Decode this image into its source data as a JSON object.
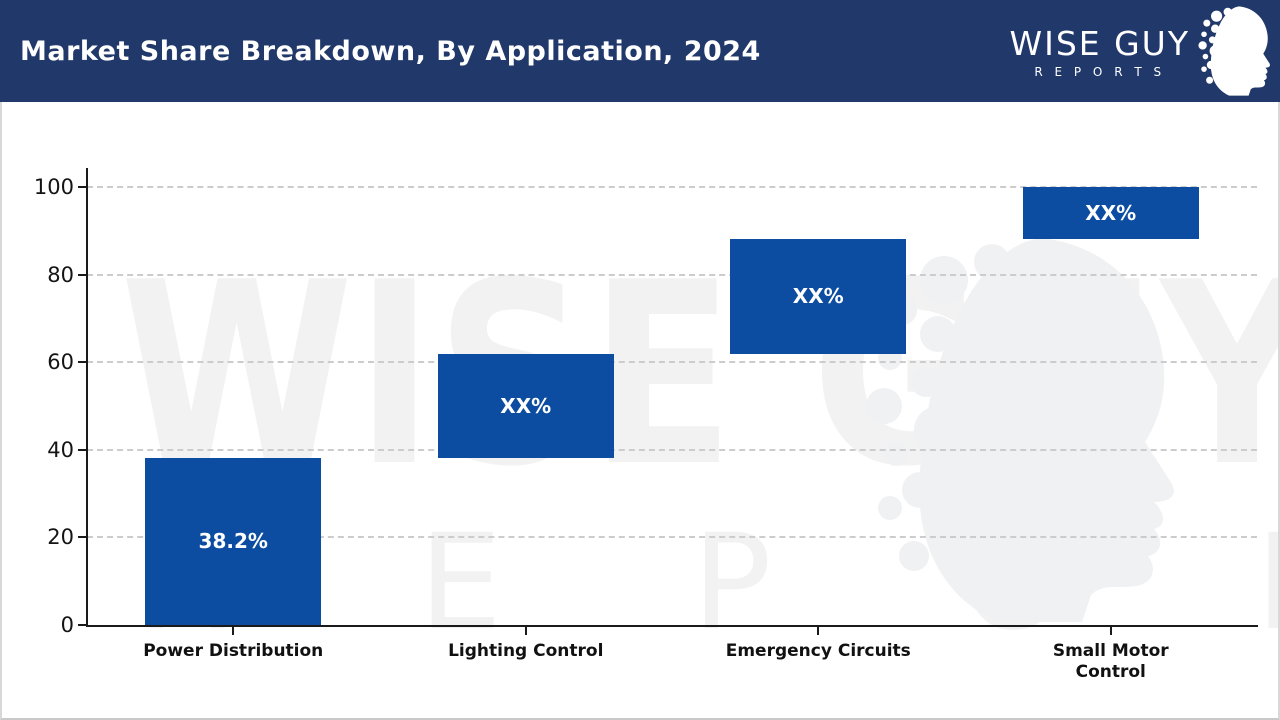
{
  "header": {
    "title": "Market Share Breakdown, By Application, 2024",
    "logo": {
      "line1": "WISE GUY",
      "line2": "R E P O R T S"
    }
  },
  "watermark": {
    "line1": "WISE GUY",
    "line2": "R E P O R T S"
  },
  "chart_data": {
    "type": "bar",
    "subtype": "waterfall",
    "title": "Market Share Breakdown, By Application, 2024",
    "categories": [
      "Power Distribution",
      "Lighting Control",
      "Emergency Circuits",
      "Small Motor\nControl"
    ],
    "segments": [
      {
        "category": "Power Distribution",
        "start": 0,
        "end": 38.2,
        "label": "38.2%"
      },
      {
        "category": "Lighting Control",
        "start": 38.2,
        "end": 61.8,
        "label": "XX%"
      },
      {
        "category": "Emergency Circuits",
        "start": 61.8,
        "end": 88.2,
        "label": "XX%"
      },
      {
        "category": "Small Motor Control",
        "start": 88.2,
        "end": 100.0,
        "label": "XX%"
      }
    ],
    "ylim": [
      0,
      100
    ],
    "yticks": [
      0,
      20,
      40,
      60,
      80,
      100
    ],
    "xlabel": "",
    "ylabel": "",
    "grid": "horizontal-dashed",
    "legend": "none",
    "bar_color": "#0c4da2",
    "bar_label_color": "#ffffff"
  },
  "colors": {
    "header_bg": "#21386b",
    "bar": "#0c4da2",
    "watermark": "#f2f2f2",
    "grid": "#cccccc",
    "axis": "#1a1a1a"
  }
}
